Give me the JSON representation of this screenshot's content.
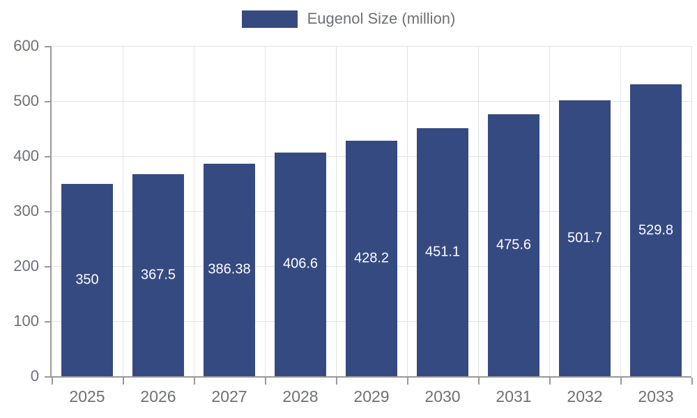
{
  "legend": {
    "label": "Eugenol Size (million)",
    "swatch_color": "#364a82"
  },
  "chart_data": {
    "type": "bar",
    "title": "",
    "series_name": "Eugenol Size (million)",
    "categories": [
      "2025",
      "2026",
      "2027",
      "2028",
      "2029",
      "2030",
      "2031",
      "2032",
      "2033"
    ],
    "values": [
      350,
      367.5,
      386.38,
      406.6,
      428.2,
      451.1,
      475.6,
      501.7,
      529.8
    ],
    "value_labels": [
      "350",
      "367.5",
      "386.38",
      "406.6",
      "428.2",
      "451.1",
      "475.6",
      "501.7",
      "529.8"
    ],
    "xlabel": "",
    "ylabel": "",
    "ylim": [
      0,
      600
    ],
    "y_ticks": [
      0,
      100,
      200,
      300,
      400,
      500,
      600
    ],
    "grid": true,
    "legend_position": "top-center",
    "colors": {
      "bar": "#364a82",
      "bar_value_label": "#ffffff",
      "axis_line": "#999999",
      "gridline": "#e3e3e3",
      "tick_label": "#6e7079",
      "legend_text": "#6e7079"
    }
  }
}
